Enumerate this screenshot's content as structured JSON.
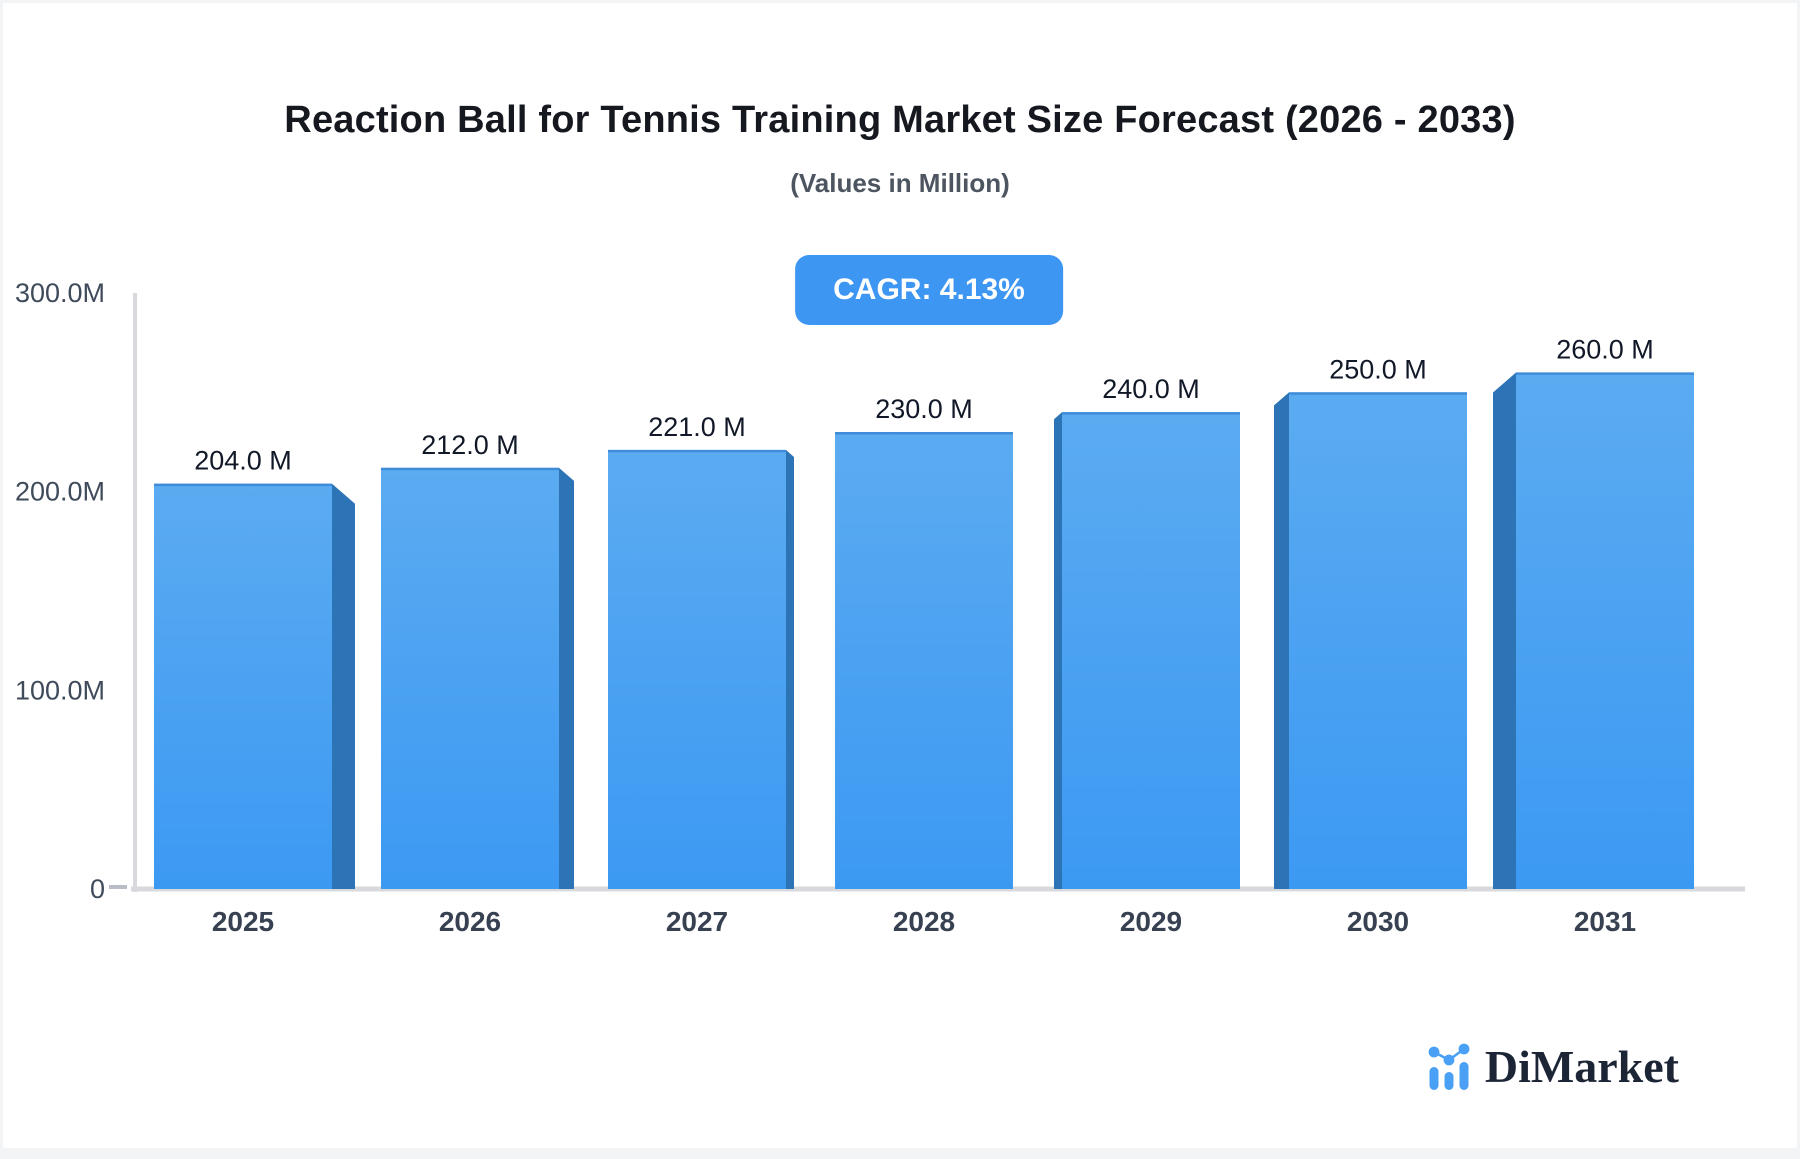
{
  "title": "Reaction Ball for Tennis Training Market Size Forecast (2026 - 2033)",
  "subtitle": "(Values in Million)",
  "badge": {
    "label": "CAGR: 4.13%"
  },
  "chart_data": {
    "type": "bar",
    "title": "Reaction Ball for Tennis Training Market Size Forecast (2026 - 2033)",
    "subtitle": "(Values in Million)",
    "categories": [
      "2025",
      "2026",
      "2027",
      "2028",
      "2029",
      "2030",
      "2031"
    ],
    "values": [
      204,
      212,
      221,
      230,
      240,
      250,
      260
    ],
    "value_labels": [
      "204.0 M",
      "212.0 M",
      "221.0 M",
      "230.0 M",
      "240.0 M",
      "250.0 M",
      "260.0 M"
    ],
    "unit": "Million",
    "ylim": [
      0,
      300
    ],
    "y_ticks": [
      {
        "value": 0,
        "label": "0"
      },
      {
        "value": 100,
        "label": "100.0M"
      },
      {
        "value": 200,
        "label": "200.0M"
      },
      {
        "value": 300,
        "label": "300.0M"
      }
    ],
    "grid": false,
    "legend": "none",
    "colors": {
      "bar_front_top": "#5babf1",
      "bar_front_bottom": "#3c99f2",
      "bar_side": "#2d74b6",
      "bar_top_edge": "#418cd8",
      "axis_line": "#d8d9dc",
      "tick_label": "#3f4a5a",
      "category_label": "#374151",
      "value_label": "#111827"
    }
  },
  "logo": {
    "brand": "DiMarket",
    "icon": "bar-chart-logo-icon",
    "icon_color": "#4aa0f5"
  }
}
